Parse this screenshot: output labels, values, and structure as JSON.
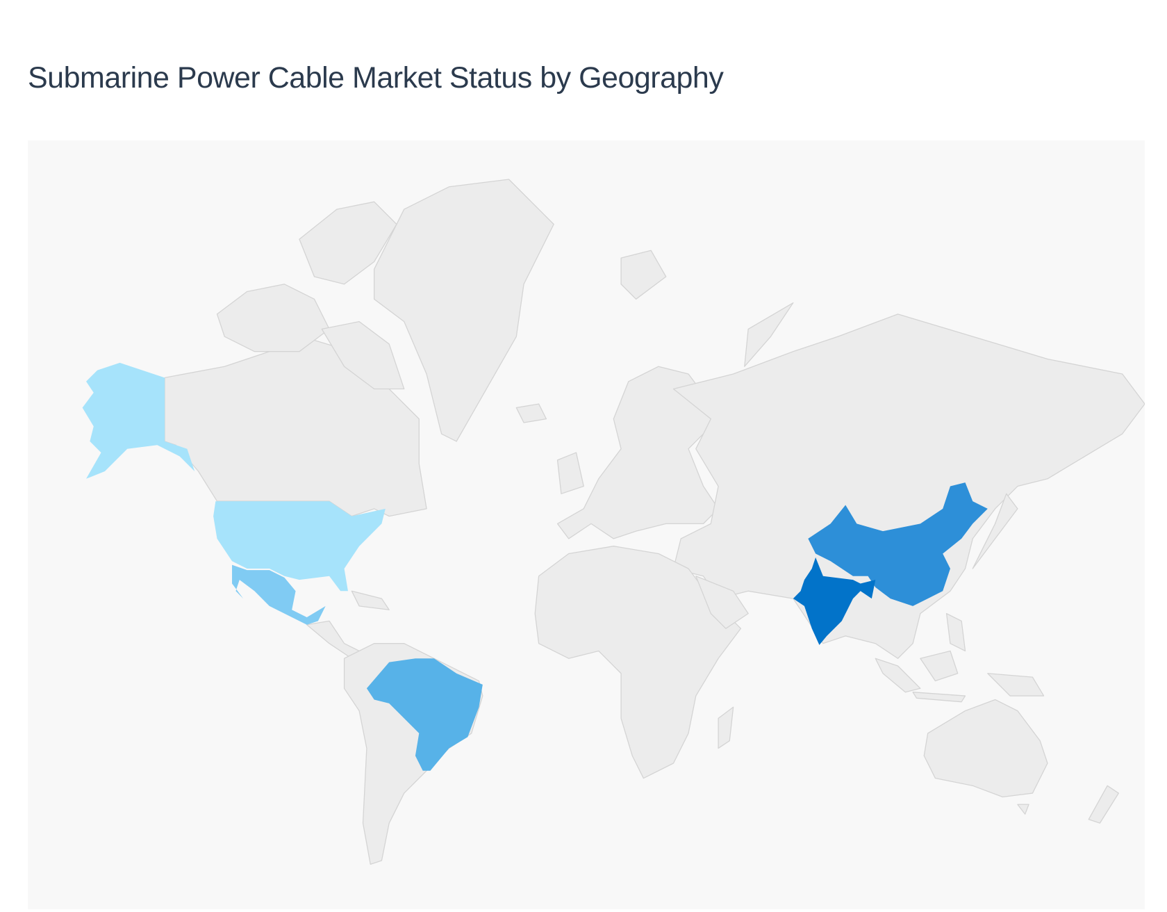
{
  "title": "Submarine Power Cable Market Status by Geography",
  "chart_data": {
    "type": "choropleth",
    "title": "Submarine Power Cable Market Status by Geography",
    "projection": "mercator",
    "base_color": "#ececec",
    "background_color": "#f8f8f8",
    "legend": "none",
    "highlighted_regions": [
      {
        "region": "United States",
        "color": "#a6e3fb"
      },
      {
        "region": "Mexico",
        "color": "#80cbf3"
      },
      {
        "region": "Brazil",
        "color": "#57b2e8"
      },
      {
        "region": "China",
        "color": "#2d8fd8"
      },
      {
        "region": "India",
        "color": "#0273c9"
      }
    ]
  }
}
